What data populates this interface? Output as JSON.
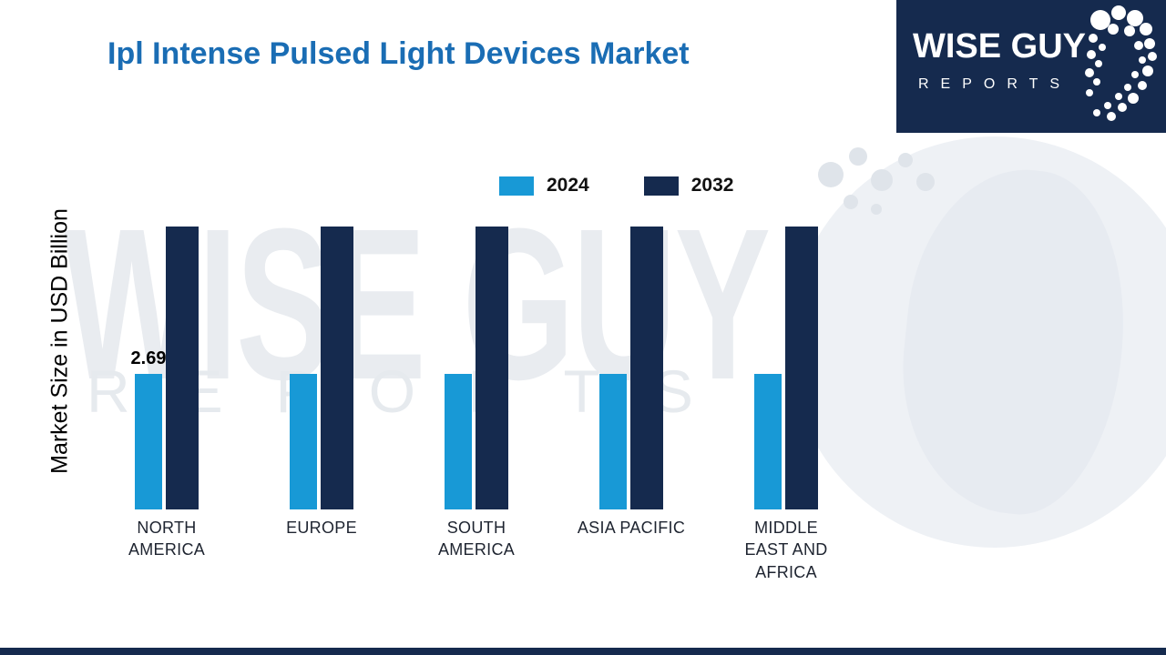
{
  "header": {
    "title": "Ipl Intense Pulsed Light Devices Market"
  },
  "brand": {
    "name_line": "WISE GUY",
    "sub_line": "REPORTS"
  },
  "watermark": {
    "name_line": "WISE GUY",
    "sub_line": "REPORTS"
  },
  "chart_data": {
    "type": "bar",
    "title": "Ipl Intense Pulsed Light Devices Market",
    "xlabel": "",
    "ylabel": "Market Size in USD Billion",
    "categories": [
      "NORTH AMERICA",
      "EUROPE",
      "SOUTH AMERICA",
      "ASIA PACIFIC",
      "MIDDLE EAST AND AFRICA"
    ],
    "series": [
      {
        "name": "2024",
        "color": "#1899d6",
        "values": [
          2.69,
          2.69,
          2.69,
          2.69,
          2.69
        ]
      },
      {
        "name": "2032",
        "color": "#152a4e",
        "values": [
          5.6,
          5.6,
          5.6,
          5.6,
          5.6
        ]
      }
    ],
    "value_labels": [
      {
        "category_index": 0,
        "series_index": 0,
        "text": "2.69"
      }
    ],
    "legend_position": "top",
    "grid": false,
    "ylim": [
      0,
      6
    ]
  }
}
